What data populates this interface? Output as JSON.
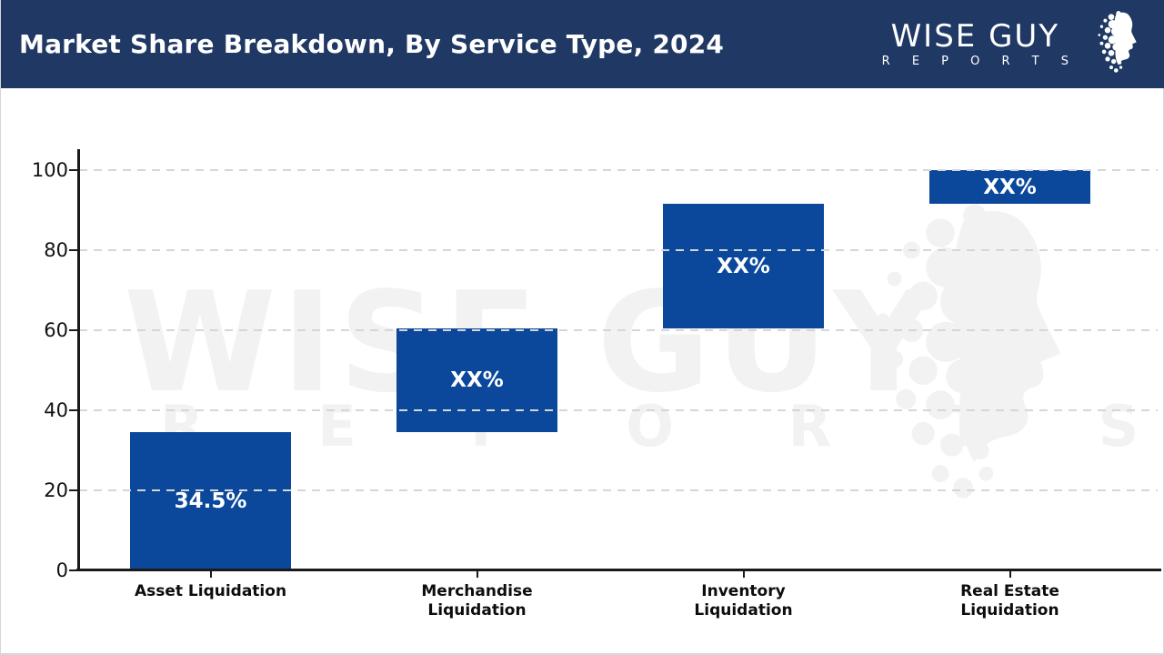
{
  "header": {
    "title": "Market Share Breakdown, By Service Type, 2024",
    "logo": {
      "line1": "WISE GUY",
      "line2": "R E P O R T S",
      "icon": "dotted-face-icon"
    }
  },
  "watermark": {
    "line1": "WISE GUY",
    "line2": "R E P O R T S",
    "icon": "dotted-face-icon"
  },
  "colors": {
    "header_bg": "#1f3864",
    "bar": "#0b489c",
    "bar_label": "#ffffff",
    "axis": "#1a1a1a",
    "gridline": "#d6d6d6",
    "watermark": "#f2f2f2"
  },
  "chart_data": {
    "type": "bar",
    "subtype": "waterfall",
    "title": "Market Share Breakdown, By Service Type, 2024",
    "categories": [
      "Asset Liquidation",
      "Merchandise Liquidation",
      "Inventory Liquidation",
      "Real Estate Liquidation"
    ],
    "category_lines": [
      [
        "Asset Liquidation"
      ],
      [
        "Merchandise",
        "Liquidation"
      ],
      [
        "Inventory",
        "Liquidation"
      ],
      [
        "Real Estate",
        "Liquidation"
      ]
    ],
    "segments": [
      {
        "category": "Asset Liquidation",
        "start": 0,
        "end": 34.5,
        "label": "34.5%"
      },
      {
        "category": "Merchandise Liquidation",
        "start": 34.5,
        "end": 60.5,
        "label": "XX%"
      },
      {
        "category": "Inventory Liquidation",
        "start": 60.5,
        "end": 91.5,
        "label": "XX%"
      },
      {
        "category": "Real Estate Liquidation",
        "start": 91.5,
        "end": 100,
        "label": "XX%"
      }
    ],
    "yticks": [
      0,
      20,
      40,
      60,
      80,
      100
    ],
    "ylim": [
      0,
      105
    ],
    "xlabel": "",
    "ylabel": "",
    "grid": "horizontal-dashed-over-bars",
    "legend": "none"
  }
}
